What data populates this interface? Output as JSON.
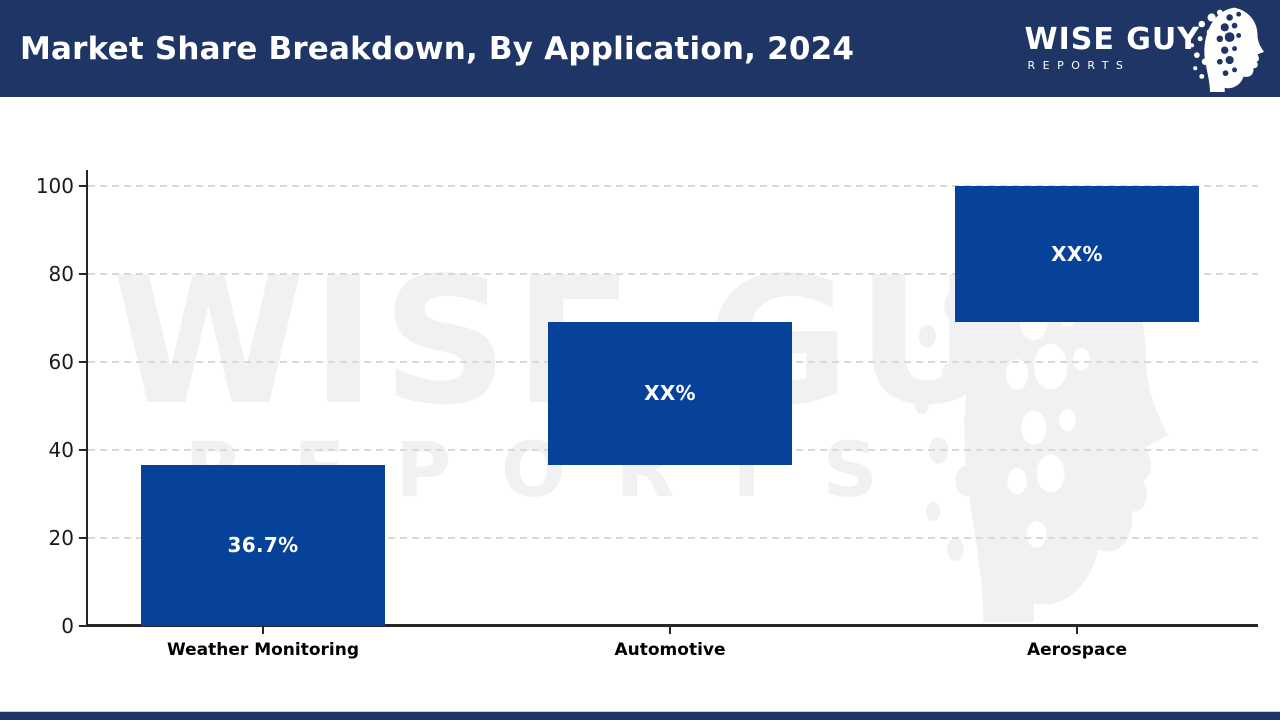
{
  "header": {
    "title": "Market Share Breakdown, By Application, 2024",
    "background_color": "#1f3565",
    "logo": {
      "line1": "WISE GUY",
      "line2": "REPORTS",
      "face_icon": "wise-guy-head"
    }
  },
  "watermark": {
    "line1": "WISE GUY",
    "line2": "REPORTS"
  },
  "chart_data": {
    "type": "bar",
    "variant": "floating-breakdown-bars",
    "title": "Market Share Breakdown, By Application, 2024",
    "categories": [
      "Weather Monitoring",
      "Automotive",
      "Aerospace"
    ],
    "bars": [
      {
        "category": "Weather Monitoring",
        "start": 0,
        "end": 36.7,
        "label": "36.7%"
      },
      {
        "category": "Automotive",
        "start": 36.7,
        "end": 69.2,
        "label": "XX%"
      },
      {
        "category": "Aerospace",
        "start": 69.2,
        "end": 100,
        "label": "XX%"
      }
    ],
    "xlabel": "",
    "ylabel": "",
    "yticks": [
      0,
      20,
      40,
      60,
      80,
      100
    ],
    "ylim": [
      0,
      105
    ],
    "grid": {
      "horizontal": true,
      "style": "dashed",
      "color": "#d9d9d9"
    },
    "legend": null,
    "bar_color": "#07429a",
    "bar_label_color": "#ffffff"
  }
}
